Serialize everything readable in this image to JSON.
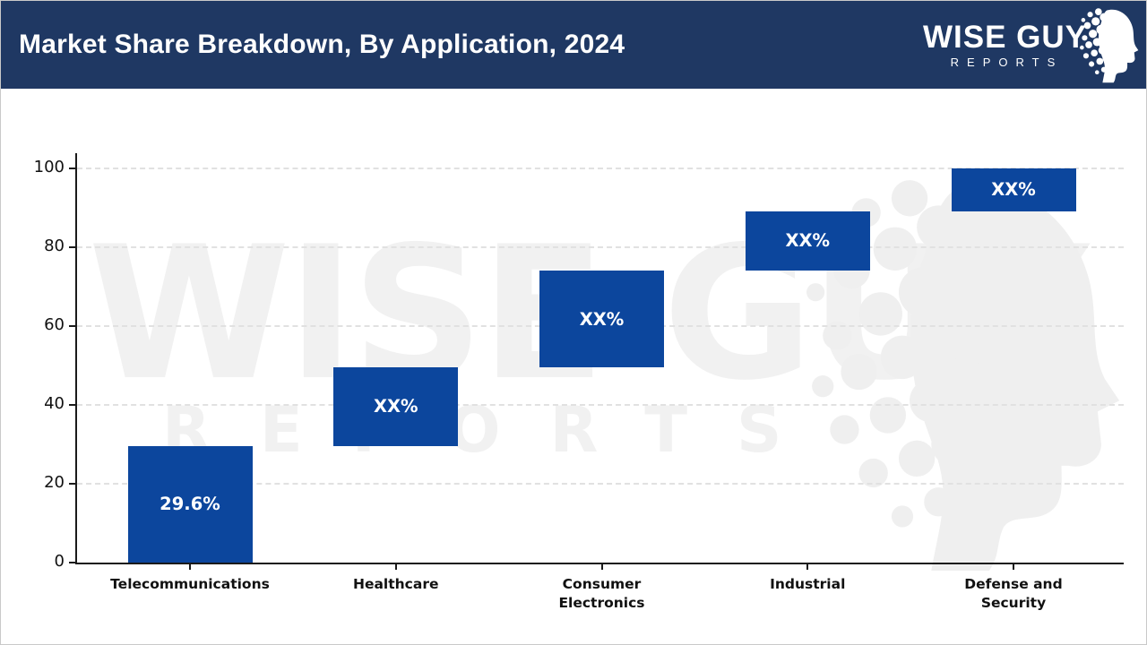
{
  "header": {
    "title": "Market Share Breakdown, By Application, 2024",
    "logo": {
      "brand": "WISE GUY",
      "sub": "REPORTS",
      "icon": "dotted-head-profile"
    }
  },
  "watermark": {
    "brand": "WISE GUY",
    "sub": "REPORTS"
  },
  "colors": {
    "header_bg": "#1f3863",
    "bar": "#0c469d",
    "bar_label": "#ffffff",
    "axis": "#1a1a1a",
    "grid": "#e1e1e1",
    "category_label": "#111111",
    "watermark": "#f1f1f1",
    "page_bg": "#ffffff"
  },
  "chart_data": {
    "type": "bar",
    "subtype": "waterfall",
    "title": "Market Share Breakdown, By Application, 2024",
    "categories": [
      "Telecommunications",
      "Healthcare",
      "Consumer\nElectronics",
      "Industrial",
      "Defense and\nSecurity"
    ],
    "segments": [
      {
        "category": "Telecommunications",
        "start": 0,
        "end": 29.6,
        "label": "29.6%"
      },
      {
        "category": "Healthcare",
        "start": 29.6,
        "end": 49.5,
        "label": "XX%"
      },
      {
        "category": "Consumer Electronics",
        "start": 49.5,
        "end": 74.1,
        "label": "XX%"
      },
      {
        "category": "Industrial",
        "start": 74.1,
        "end": 89.2,
        "label": "XX%"
      },
      {
        "category": "Defense and Security",
        "start": 89.2,
        "end": 100,
        "label": "XX%"
      }
    ],
    "yticks": [
      0,
      20,
      40,
      60,
      80,
      100
    ],
    "ylim": [
      0,
      105
    ],
    "xlabel": "",
    "ylabel": "",
    "grid": {
      "horizontal": true,
      "style": "dashed"
    },
    "legend": "none"
  }
}
